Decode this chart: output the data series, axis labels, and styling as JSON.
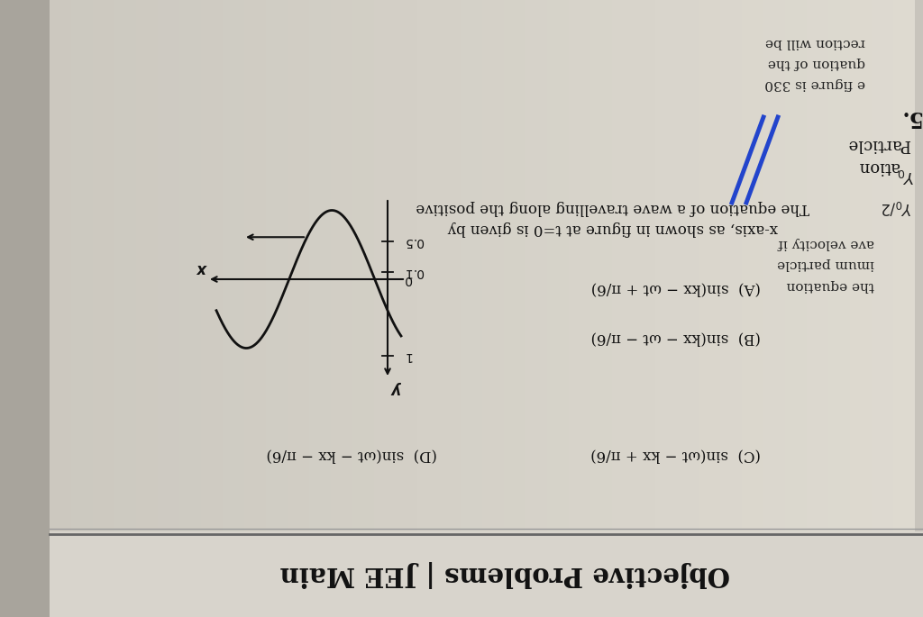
{
  "bg_color": "#c8c4bc",
  "page_bg_left": "#d0ccc4",
  "page_bg_right": "#eceae4",
  "page_bg_center": "#e8e4dc",
  "title_text": "Objective Problems | JEE Main",
  "wave_color": "#111111",
  "axis_color": "#111111",
  "text_color": "#111111",
  "question_number": "5.",
  "q_line1": "The equation of a wave travelling along the positive",
  "q_line2": "x-axis, as shown in figure at t=0 is given by",
  "option_A": "(A)  sin(kx − ωt + π/6)",
  "option_B": "(B)  sin(kx − ωt − π/6)",
  "option_C": "(C)  sin(ωt − kx + π/6)",
  "option_D": "(D)  sin(ωt − kx − π/6)",
  "right_text1": "rection will be",
  "right_text2": "quation of the",
  "right_text3": "e figure is 330",
  "right_text4": "ave velocity if",
  "right_text5": "imum particle",
  "right_text6": "the equation",
  "right_text7": "ation",
  "right_text8": "Particle",
  "label_Y0": "Y",
  "label_Y02": "Y",
  "blue_line_color": "#2244cc"
}
